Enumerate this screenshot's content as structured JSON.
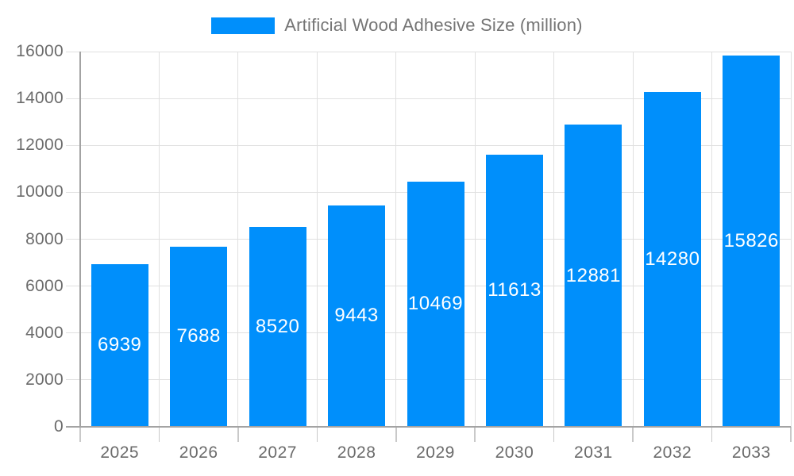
{
  "chart_data": {
    "type": "bar",
    "title": "Artificial Wood Adhesive Size (million)",
    "categories": [
      "2025",
      "2026",
      "2027",
      "2028",
      "2029",
      "2030",
      "2031",
      "2032",
      "2033"
    ],
    "series": [
      {
        "name": "Artificial Wood Adhesive Size (million)",
        "values": [
          6939,
          7688,
          8520,
          9443,
          10469,
          11613,
          12881,
          14280,
          15826
        ]
      }
    ],
    "xlabel": "",
    "ylabel": "",
    "ylim": [
      0,
      16000
    ],
    "yticks": [
      0,
      2000,
      4000,
      6000,
      8000,
      10000,
      12000,
      14000,
      16000
    ],
    "grid": true,
    "legend_position": "top",
    "value_labels_shown": true,
    "colors": {
      "bar": "#008FFB",
      "grid": "#e0e0e0",
      "axis": "#a3a3a3",
      "tick": "#c9c9c9",
      "axis_label": "#6b6b6b",
      "legend_label": "#757575",
      "value_label": "#ffffff",
      "background": "#ffffff"
    }
  }
}
